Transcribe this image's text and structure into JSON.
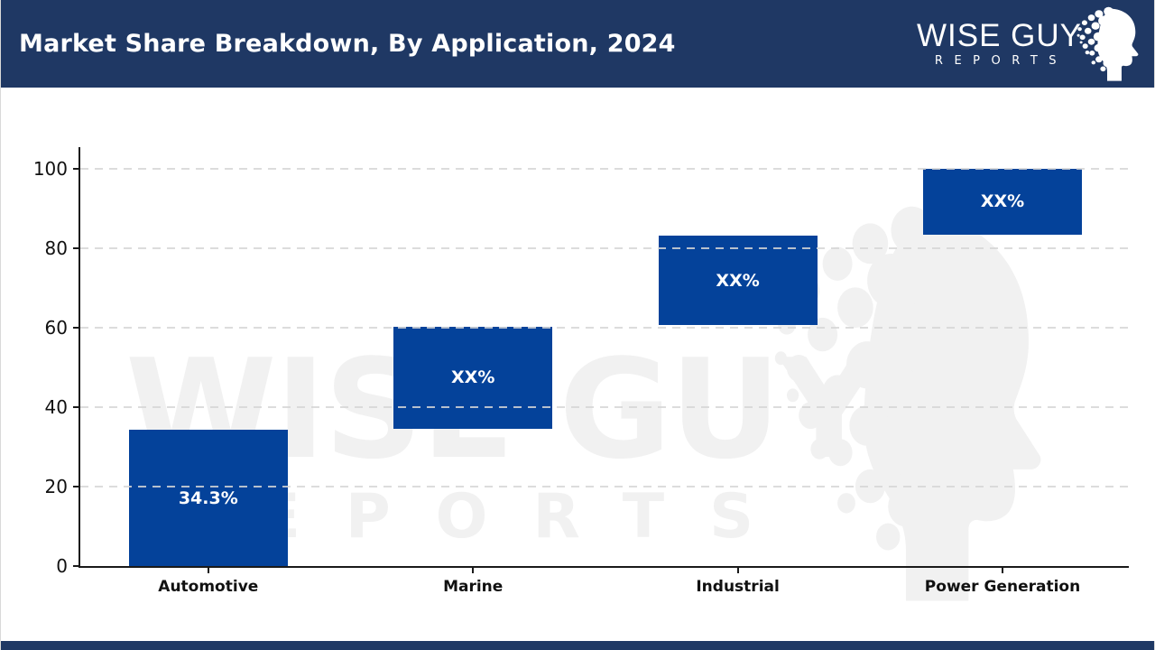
{
  "header": {
    "title": "Market Share Breakdown, By Application, 2024",
    "brand_line1": "WISE GUY",
    "brand_line2": "REPORTS"
  },
  "watermark": {
    "line1": "WISE GUY",
    "line2": "REPORTS"
  },
  "colors": {
    "header_bg": "#1f3864",
    "footer_bg": "#1f3864",
    "bar": "#04429a",
    "bar_label": "#ffffff",
    "grid": "#d6d6d6",
    "watermark": "#f1f1f1"
  },
  "chart_data": {
    "type": "bar",
    "subtype": "waterfall",
    "title": "Market Share Breakdown, By Application, 2024",
    "xlabel": "",
    "ylabel": "",
    "categories": [
      "Automotive",
      "Marine",
      "Industrial",
      "Power Generation"
    ],
    "segments": [
      {
        "category": "Automotive",
        "start": 0,
        "end": 34.3,
        "label": "34.3%"
      },
      {
        "category": "Marine",
        "start": 34.5,
        "end": 60.3,
        "label": "XX%"
      },
      {
        "category": "Industrial",
        "start": 60.6,
        "end": 83.2,
        "label": "XX%"
      },
      {
        "category": "Power Generation",
        "start": 83.5,
        "end": 100,
        "label": "XX%"
      }
    ],
    "yticks": [
      0,
      20,
      40,
      60,
      80,
      100
    ],
    "ylim": [
      0,
      105
    ],
    "grid": "horizontal-dashed",
    "legend": "none"
  }
}
